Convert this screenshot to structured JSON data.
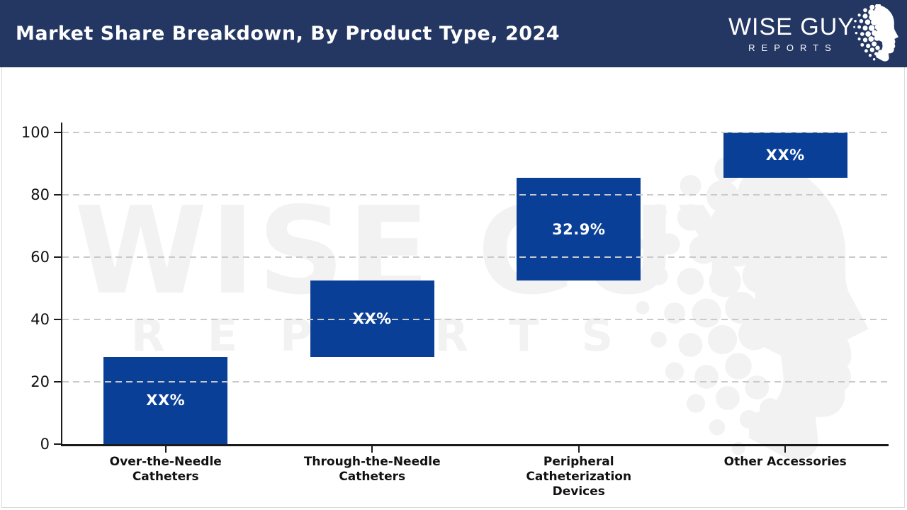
{
  "header": {
    "title": "Market Share Breakdown, By Product Type, 2024",
    "logo": {
      "line1": "WISE GUY",
      "line2": "REPORTS"
    }
  },
  "watermark": {
    "line1": "WISE GUY",
    "line2": "REPORTS"
  },
  "colors": {
    "header_bg": "#243763",
    "bar": "#0a3f97",
    "grid": "#c9c9c9",
    "axis": "#1a1a1a",
    "bar_label": "#ffffff",
    "text": "#111111",
    "watermark": "#f2f2f2"
  },
  "chart_data": {
    "type": "bar",
    "subtype": "stacked-waterfall",
    "title": "Market Share Breakdown, By Product Type, 2024",
    "categories": [
      "Over-the-Needle Catheters",
      "Through-the-Needle Catheters",
      "Peripheral Catheterization Devices",
      "Other Accessories"
    ],
    "category_lines": [
      [
        "Over-the-Needle",
        "Catheters"
      ],
      [
        "Through-the-Needle",
        "Catheters"
      ],
      [
        "Peripheral",
        "Catheterization",
        "Devices"
      ],
      [
        "Other Accessories"
      ]
    ],
    "series": [
      {
        "name": "Market share (%)",
        "segments": [
          {
            "category": "Over-the-Needle Catheters",
            "from": 0,
            "to": 28,
            "label": "XX%"
          },
          {
            "category": "Through-the-Needle Catheters",
            "from": 28,
            "to": 52.4,
            "label": "XX%"
          },
          {
            "category": "Peripheral Catheterization Devices",
            "from": 52.4,
            "to": 85.3,
            "label": "32.9%",
            "value": 32.9
          },
          {
            "category": "Other Accessories",
            "from": 85.3,
            "to": 100,
            "label": "XX%"
          }
        ]
      }
    ],
    "ylim": [
      0,
      100
    ],
    "yticks": [
      0,
      20,
      40,
      60,
      80,
      100
    ],
    "grid": "horizontal-dashed",
    "legend": "none",
    "xlabel": "",
    "ylabel": ""
  }
}
